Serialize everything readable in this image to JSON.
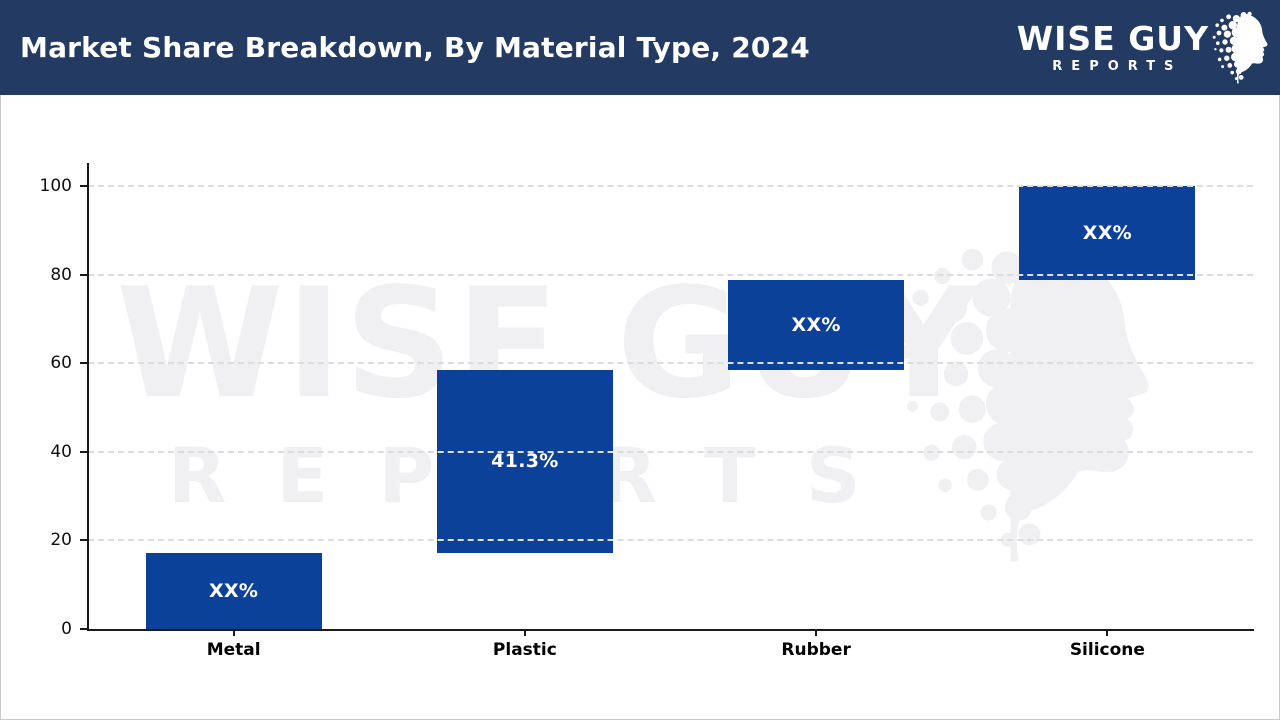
{
  "header": {
    "title": "Market Share Breakdown, By Material Type, 2024",
    "logo": {
      "name": "WISE GUY",
      "tagline": "REPORTS"
    }
  },
  "watermark": {
    "line1": "WISE GUY",
    "line2": "REPORTS"
  },
  "colors": {
    "header_bg": "#233a63",
    "title_text": "#ffffff",
    "bar": "#0c4199",
    "bar_label": "#ffffff",
    "grid": "#dcdcdc",
    "axis": "#1a1a1a",
    "watermark": "#f0f0f3",
    "page_border": "#c9c9c9"
  },
  "chart_data": {
    "type": "bar",
    "subtype": "waterfall-floating-bars",
    "title": "Market Share Breakdown, By Material Type, 2024",
    "categories": [
      "Metal",
      "Plastic",
      "Rubber",
      "Silicone"
    ],
    "segments": [
      {
        "category": "Metal",
        "start": 0,
        "end": 17.2,
        "value": 17.2,
        "label": "XX%"
      },
      {
        "category": "Plastic",
        "start": 17.2,
        "end": 58.5,
        "value": 41.3,
        "label": "41.3%"
      },
      {
        "category": "Rubber",
        "start": 58.5,
        "end": 78.8,
        "value": 20.3,
        "label": "XX%"
      },
      {
        "category": "Silicone",
        "start": 78.8,
        "end": 100,
        "value": 21.2,
        "label": "XX%"
      }
    ],
    "yticks": [
      0,
      20,
      40,
      60,
      80,
      100
    ],
    "ylim": [
      0,
      105
    ],
    "xlabel": "",
    "ylabel": "",
    "grid": "horizontal-dashed",
    "legend": "none"
  }
}
